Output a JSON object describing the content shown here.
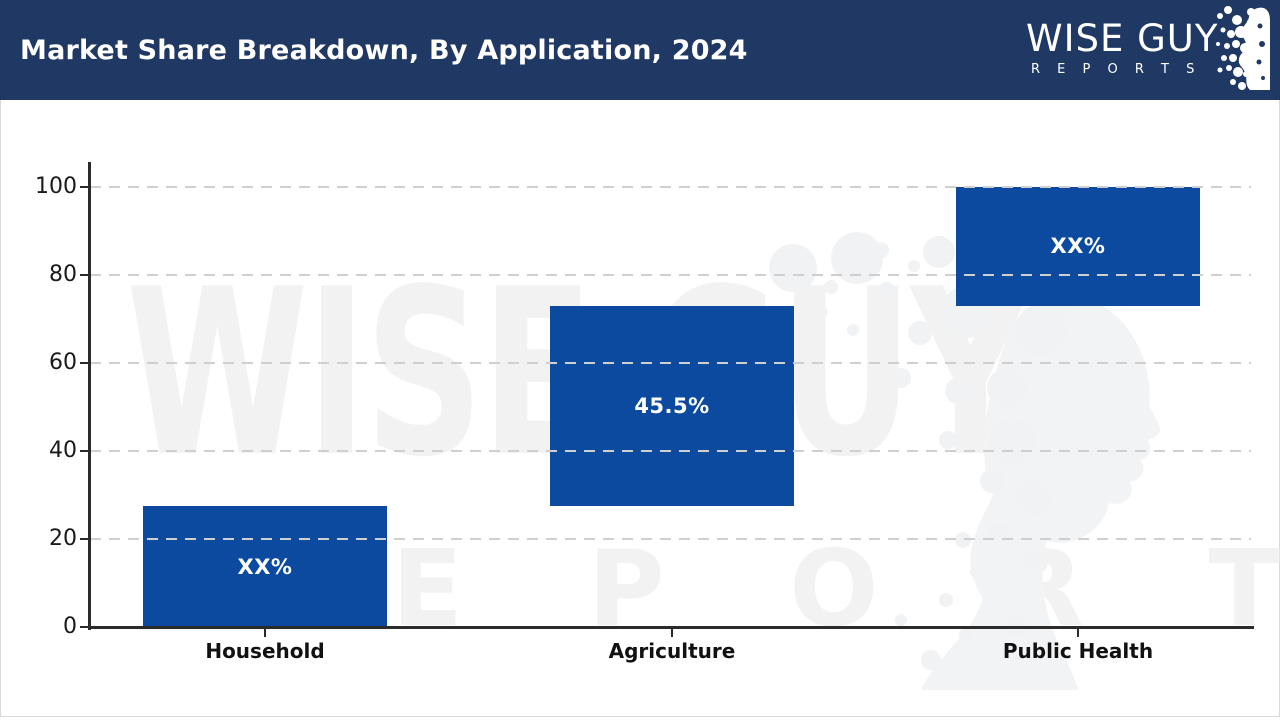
{
  "header": {
    "title": "Market Share Breakdown, By Application, 2024",
    "bg_color": "#203864",
    "logo": {
      "line1": "WISE GUY",
      "line2": "R E P O R T S"
    }
  },
  "watermark": {
    "line1": "WISE GUY",
    "line2": "R E P O R T S"
  },
  "chart_data": {
    "type": "bar",
    "subtype": "floating-waterfall",
    "title": "Market Share Breakdown, By Application, 2024",
    "categories": [
      "Household",
      "Agriculture",
      "Public Health"
    ],
    "segments": [
      {
        "category": "Household",
        "start": 0,
        "end": 27.5,
        "span": 27.5,
        "label": "XX%"
      },
      {
        "category": "Agriculture",
        "start": 27.5,
        "end": 73,
        "span": 45.5,
        "label": "45.5%"
      },
      {
        "category": "Public Health",
        "start": 73,
        "end": 100,
        "span": 27,
        "label": "XX%"
      }
    ],
    "xlabel": "",
    "ylabel": "",
    "yticks": [
      0,
      20,
      40,
      60,
      80,
      100
    ],
    "ylim": [
      0,
      105
    ],
    "grid": "horizontal-dashed",
    "legend": "none",
    "bar_color": "#0b4a9f",
    "bar_label_color": "#ffffff",
    "axis_color": "#2b2b2b"
  }
}
